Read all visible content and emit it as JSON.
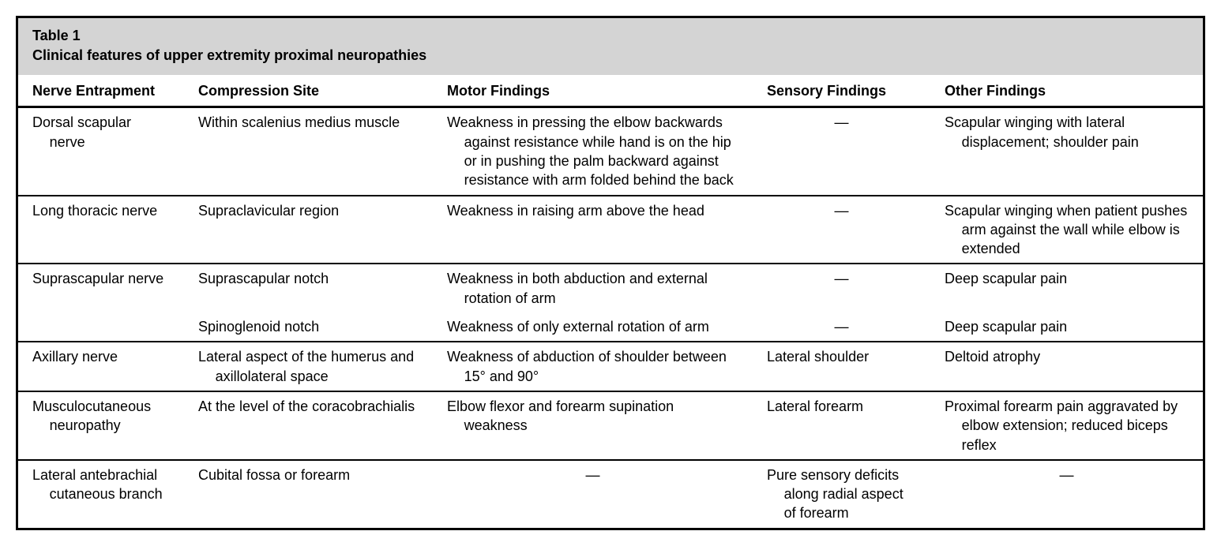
{
  "table": {
    "number": "Table 1",
    "caption": "Clinical features of upper extremity proximal neuropathies",
    "columns": [
      "Nerve Entrapment",
      "Compression Site",
      "Motor Findings",
      "Sensory Findings",
      "Other Findings"
    ],
    "rows": [
      {
        "nerve": "Dorsal scapular nerve",
        "site": "Within scalenius medius muscle",
        "motor": "Weakness in pressing the elbow backwards against resistance while hand is on the hip or in pushing the palm backward against resistance with arm folded behind the back",
        "sensory": "—",
        "other": "Scapular winging with lateral displacement; shoulder pain",
        "group_end": true
      },
      {
        "nerve": "Long thoracic nerve",
        "site": "Supraclavicular region",
        "motor": "Weakness in raising arm above the head",
        "sensory": "—",
        "other": "Scapular winging when patient pushes arm against the wall while elbow is extended",
        "group_end": true
      },
      {
        "nerve": "Suprascapular nerve",
        "site": "Suprascapular notch",
        "motor": "Weakness in both abduction and external rotation of arm",
        "sensory": "—",
        "other": "Deep scapular pain",
        "group_end": false
      },
      {
        "nerve": "",
        "site": "Spinoglenoid notch",
        "motor": "Weakness of only external rotation of arm",
        "sensory": "—",
        "other": "Deep scapular pain",
        "group_end": true
      },
      {
        "nerve": "Axillary nerve",
        "site": "Lateral aspect of the humerus and axillolateral space",
        "motor": "Weakness of abduction of shoulder between 15° and 90°",
        "sensory": "Lateral shoulder",
        "other": "Deltoid atrophy",
        "group_end": true
      },
      {
        "nerve": "Musculocutaneous neuropathy",
        "site": "At the level of the coracobrachialis",
        "motor": "Elbow flexor and forearm supination weakness",
        "sensory": "Lateral forearm",
        "other": "Proximal forearm pain aggravated by elbow extension; reduced biceps reflex",
        "group_end": true
      },
      {
        "nerve": "Lateral antebrachial cutaneous branch",
        "site": "Cubital fossa or forearm",
        "motor": "—",
        "sensory": "Pure sensory deficits along radial aspect of forearm",
        "other": "—",
        "group_end": false
      }
    ],
    "colors": {
      "header_bg": "#d4d4d4",
      "border": "#000000",
      "text": "#000000",
      "bg": "#ffffff"
    }
  }
}
